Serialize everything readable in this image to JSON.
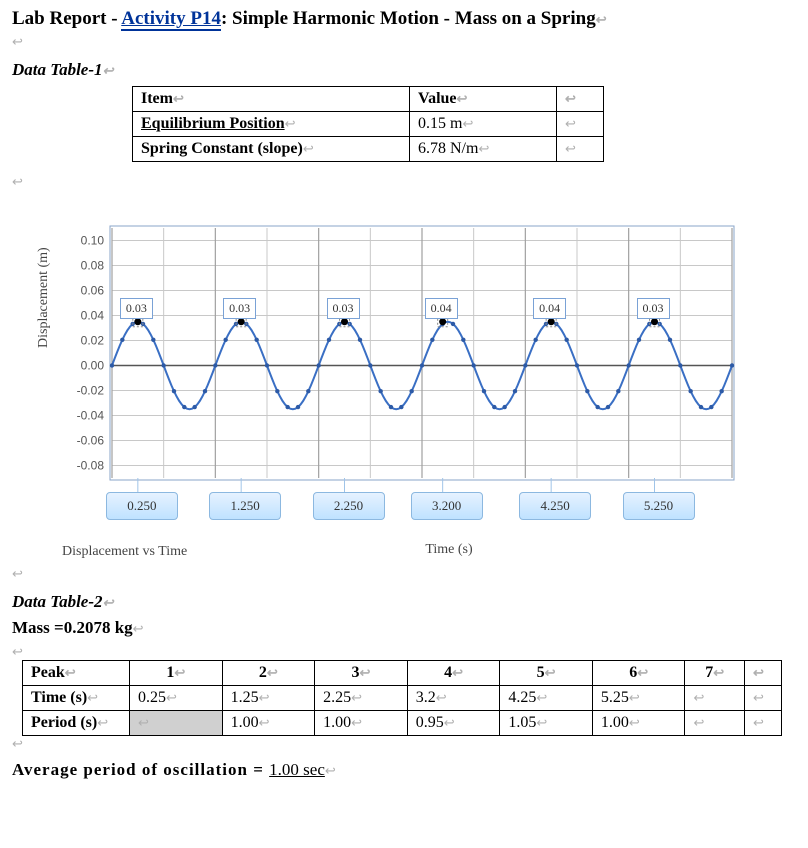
{
  "title": {
    "prefix": "Lab Report - ",
    "activity": "Activity  P14",
    "suffix": ": Simple   Harmonic   Motion - Mass on   a Spring"
  },
  "table1": {
    "heading": "Data Table-1",
    "headers": [
      "Item",
      "Value"
    ],
    "rows": [
      {
        "item": "Equilibrium   Position",
        "value": "0.15 m",
        "item_style": "eq-pos"
      },
      {
        "item": "Spring    Constant (slope)",
        "value": "6.78 N/m",
        "item_style": "bold"
      }
    ]
  },
  "chart": {
    "type": "line",
    "ylabel": "Displacement (m)",
    "xlabel": "Time (s)",
    "caption": "Displacement vs Time",
    "yticks": [
      0.1,
      0.08,
      0.06,
      0.04,
      0.02,
      0.0,
      -0.02,
      -0.04,
      -0.06,
      -0.08
    ],
    "ytick_labels": [
      "0.10",
      "0.08",
      "0.06",
      "0.04",
      "0.02",
      "0.00",
      "-0.02",
      "-0.04",
      "-0.06",
      "-0.08"
    ],
    "xrange": [
      0,
      6
    ],
    "yrange": [
      -0.09,
      0.11
    ],
    "amplitude": 0.035,
    "period": 1.0,
    "line_color": "#3a6fc4",
    "marker_color": "#2d5aa6",
    "grid_color": "#c8c8c8",
    "frame_color": "#8aa4c8",
    "background_color": "#ffffff",
    "peak_labels": [
      "0.03",
      "0.03",
      "0.03",
      "0.04",
      "0.04",
      "0.03"
    ],
    "time_labels": [
      "0.250",
      "1.250",
      "2.250",
      "3.200",
      "4.250",
      "5.250"
    ],
    "peak_x": [
      0.25,
      1.25,
      2.25,
      3.2,
      4.25,
      5.25
    ]
  },
  "table2": {
    "heading": "Data Table-2",
    "mass_label": "Mass =0.2078 kg",
    "headers": [
      "Peak",
      "1",
      "2",
      "3",
      "4",
      "5",
      "6",
      "7"
    ],
    "rows": [
      {
        "label": "Time (s)",
        "cells": [
          "0.25",
          "1.25",
          "2.25",
          "3.2",
          "4.25",
          "5.25",
          ""
        ]
      },
      {
        "label": "Period (s)",
        "cells": [
          "",
          "1.00",
          "1.00",
          "0.95",
          "1.05",
          "1.00",
          ""
        ],
        "first_grey": true
      }
    ]
  },
  "avg": {
    "label": "Average period   of oscillation  = ",
    "value": "1.00 sec"
  }
}
